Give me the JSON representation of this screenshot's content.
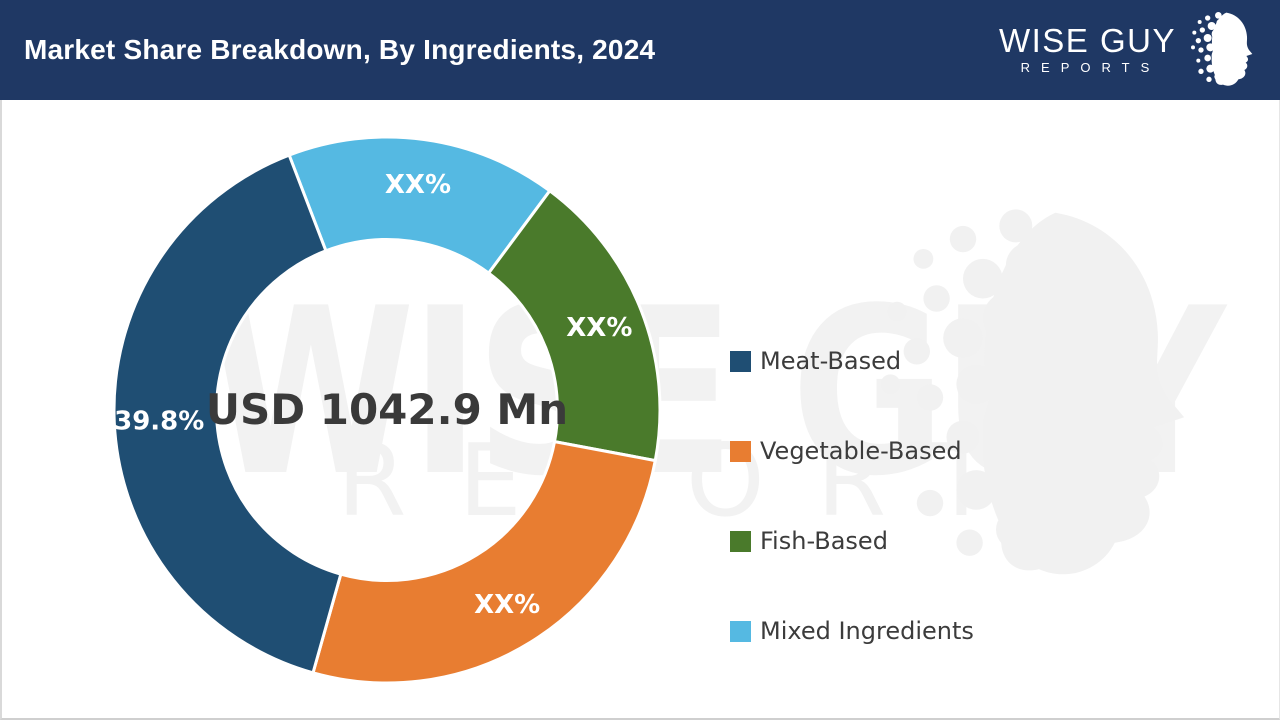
{
  "header": {
    "title": "Market Share Breakdown, By Ingredients, 2024",
    "logo": {
      "line1": "WISE GUY",
      "line2": "REPORTS"
    }
  },
  "watermark": {
    "line1": "WISE GUY",
    "line2": "REPORTS"
  },
  "colors": {
    "header_bg": "#1F3864",
    "meat_based": "#1F4E73",
    "vegetable_based": "#E87D31",
    "fish_based": "#4A7A2B",
    "mixed_ingredients": "#55B9E2",
    "center_text": "#3A3A3A",
    "legend_text": "#3C3C3C",
    "watermark": "#F2F2F2",
    "segment_label_text": "#FFFFFF"
  },
  "chart_data": {
    "type": "pie",
    "subtype": "donut",
    "title": "Market Share Breakdown, By Ingredients, 2024",
    "center_label": "USD 1042.9 Mn",
    "start_angle_deg": 111,
    "direction": "clockwise",
    "segments": [
      {
        "label": "Mixed Ingredients",
        "value_label": "XX%",
        "percent": 16.0,
        "color": "#55B9E2"
      },
      {
        "label": "Fish-Based",
        "value_label": "XX%",
        "percent": 17.8,
        "color": "#4A7A2B"
      },
      {
        "label": "Vegetable-Based",
        "value_label": "XX%",
        "percent": 26.4,
        "color": "#E87D31"
      },
      {
        "label": "Meat-Based",
        "value_label": "39.8%",
        "percent": 39.8,
        "color": "#1F4E73"
      }
    ],
    "legend": [
      {
        "label": "Meat-Based",
        "color": "#1F4E73"
      },
      {
        "label": "Vegetable-Based",
        "color": "#E87D31"
      },
      {
        "label": "Fish-Based",
        "color": "#4A7A2B"
      },
      {
        "label": "Mixed Ingredients",
        "color": "#55B9E2"
      }
    ],
    "legend_position": "right"
  }
}
